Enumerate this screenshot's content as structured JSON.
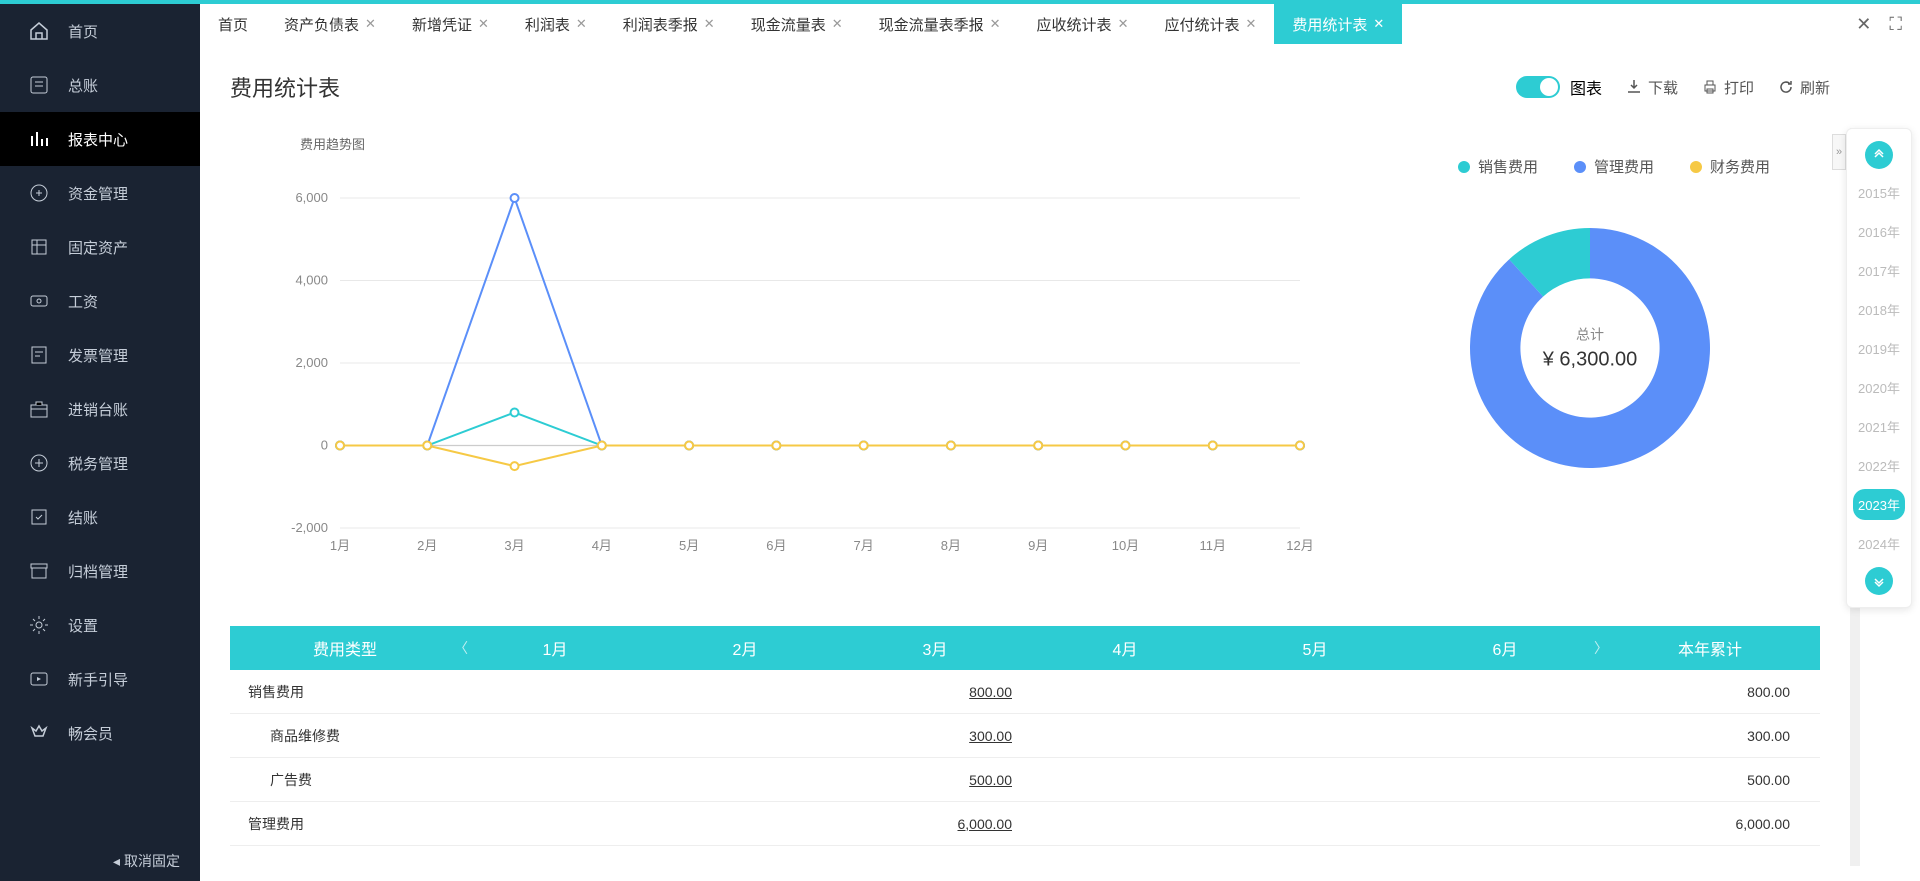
{
  "sidebar": {
    "items": [
      {
        "label": "首页",
        "icon": "home"
      },
      {
        "label": "总账",
        "icon": "ledger"
      },
      {
        "label": "报表中心",
        "icon": "report",
        "active": true
      },
      {
        "label": "资金管理",
        "icon": "fund"
      },
      {
        "label": "固定资产",
        "icon": "asset"
      },
      {
        "label": "工资",
        "icon": "salary"
      },
      {
        "label": "发票管理",
        "icon": "invoice"
      },
      {
        "label": "进销台账",
        "icon": "stock"
      },
      {
        "label": "税务管理",
        "icon": "tax"
      },
      {
        "label": "结账",
        "icon": "close"
      },
      {
        "label": "归档管理",
        "icon": "archive"
      },
      {
        "label": "设置",
        "icon": "settings"
      },
      {
        "label": "新手引导",
        "icon": "guide"
      },
      {
        "label": "畅会员",
        "icon": "vip"
      }
    ],
    "footer": "取消固定"
  },
  "tabs": [
    {
      "label": "首页",
      "closable": false
    },
    {
      "label": "资产负债表",
      "closable": true
    },
    {
      "label": "新增凭证",
      "closable": true
    },
    {
      "label": "利润表",
      "closable": true
    },
    {
      "label": "利润表季报",
      "closable": true
    },
    {
      "label": "现金流量表",
      "closable": true
    },
    {
      "label": "现金流量表季报",
      "closable": true
    },
    {
      "label": "应收统计表",
      "closable": true
    },
    {
      "label": "应付统计表",
      "closable": true
    },
    {
      "label": "费用统计表",
      "closable": true,
      "active": true
    }
  ],
  "header": {
    "title": "费用统计表",
    "toggle_label": "图表",
    "download": "下载",
    "print": "打印",
    "refresh": "刷新"
  },
  "chart": {
    "title": "费用趋势图",
    "type": "line",
    "x_labels": [
      "1月",
      "2月",
      "3月",
      "4月",
      "5月",
      "6月",
      "7月",
      "8月",
      "9月",
      "10月",
      "11月",
      "12月"
    ],
    "y_ticks": [
      -2000,
      0,
      2000,
      4000,
      6000
    ],
    "ylim": [
      -2000,
      6000
    ],
    "series": [
      {
        "name": "销售费用",
        "color": "#2dccd3",
        "data": [
          0,
          0,
          800,
          0,
          0,
          0,
          0,
          0,
          0,
          0,
          0,
          0
        ]
      },
      {
        "name": "管理费用",
        "color": "#5b8ff9",
        "data": [
          0,
          0,
          6000,
          0,
          0,
          0,
          0,
          0,
          0,
          0,
          0,
          0
        ]
      },
      {
        "name": "财务费用",
        "color": "#f6c945",
        "data": [
          0,
          0,
          -500,
          0,
          0,
          0,
          0,
          0,
          0,
          0,
          0,
          0
        ]
      }
    ],
    "grid_color": "#e8e8e8",
    "axis_text_color": "#888",
    "marker_radius": 4
  },
  "donut": {
    "type": "donut",
    "total_label": "总计",
    "total_value": "¥ 6,300.00",
    "slices": [
      {
        "name": "销售费用",
        "value": 800,
        "color": "#2dccd3"
      },
      {
        "name": "管理费用",
        "value": 6000,
        "color": "#5b8ff9"
      },
      {
        "name": "财务费用",
        "value": -500,
        "color": "#f6c945"
      }
    ],
    "inner_ratio": 0.58
  },
  "table": {
    "header_type": "费用类型",
    "months": [
      "1月",
      "2月",
      "3月",
      "4月",
      "5月",
      "6月"
    ],
    "header_total": "本年累计",
    "rows": [
      {
        "type": "销售费用",
        "indent": false,
        "m": [
          "",
          "",
          "800.00",
          "",
          "",
          ""
        ],
        "total": "800.00",
        "link": true
      },
      {
        "type": "商品维修费",
        "indent": true,
        "m": [
          "",
          "",
          "300.00",
          "",
          "",
          ""
        ],
        "total": "300.00",
        "link": true
      },
      {
        "type": "广告费",
        "indent": true,
        "m": [
          "",
          "",
          "500.00",
          "",
          "",
          ""
        ],
        "total": "500.00",
        "link": true
      },
      {
        "type": "管理费用",
        "indent": false,
        "m": [
          "",
          "",
          "6,000.00",
          "",
          "",
          ""
        ],
        "total": "6,000.00",
        "link": true
      }
    ],
    "header_bg": "#2dccd3"
  },
  "years": {
    "list": [
      "2015年",
      "2016年",
      "2017年",
      "2018年",
      "2019年",
      "2020年",
      "2021年",
      "2022年",
      "2023年",
      "2024年"
    ],
    "active": "2023年"
  },
  "colors": {
    "accent": "#2dccd3",
    "sidebar_bg": "#1a2332"
  }
}
